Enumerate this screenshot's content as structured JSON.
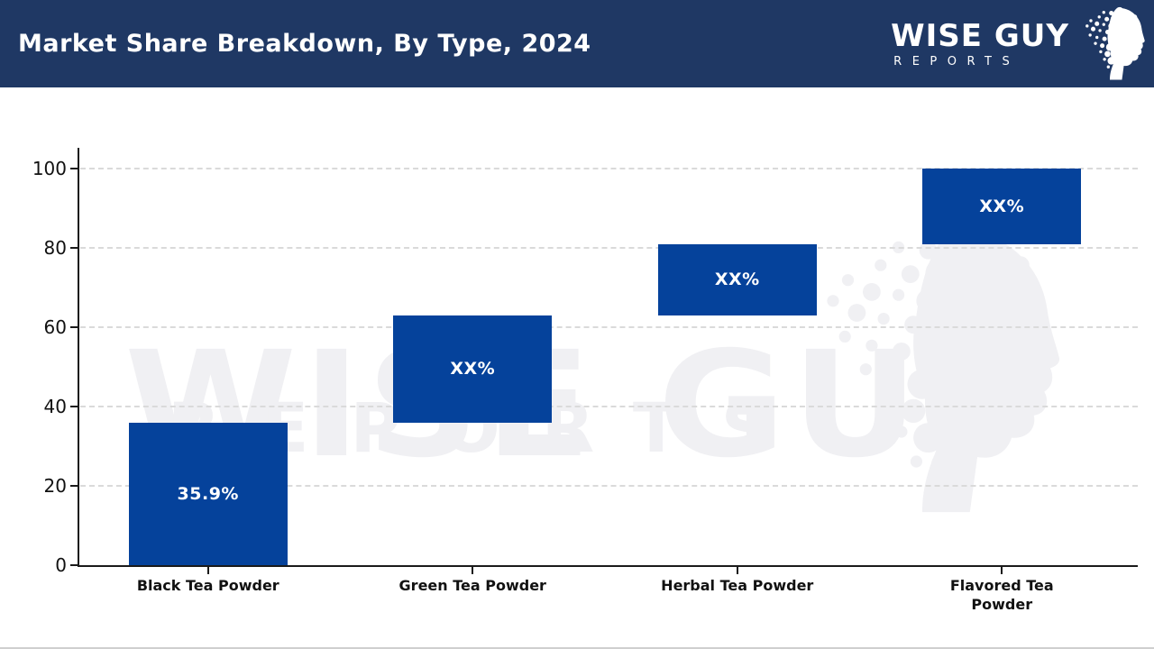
{
  "header": {
    "title": "Market Share Breakdown, By Type, 2024",
    "logo": {
      "line1": "WISE GUY",
      "line2": "REPORTS"
    }
  },
  "watermark": {
    "line1": "WISE GUY",
    "line2": "REPORTS"
  },
  "colors": {
    "header_bg": "#1f3864",
    "bar": "#05429b",
    "bar_label": "#ffffff",
    "grid": "#dadada",
    "axis": "#1a1a1a",
    "watermark": "#f0f0f3"
  },
  "chart_data": {
    "type": "bar",
    "variant": "floating-waterfall",
    "title": "Market Share Breakdown, By Type, 2024",
    "categories": [
      "Black Tea Powder",
      "Green Tea Powder",
      "Herbal Tea Powder",
      "Flavored Tea Powder"
    ],
    "tick_label_lines": [
      [
        "Black Tea Powder"
      ],
      [
        "Green Tea Powder"
      ],
      [
        "Herbal Tea Powder"
      ],
      [
        "Flavored Tea",
        "Powder"
      ]
    ],
    "segments": [
      {
        "category": "Black Tea Powder",
        "start": 0,
        "end": 35.9,
        "label": "35.9%"
      },
      {
        "category": "Green Tea Powder",
        "start": 35.9,
        "end": 63,
        "label": "XX%"
      },
      {
        "category": "Herbal Tea Powder",
        "start": 63,
        "end": 81,
        "label": "XX%"
      },
      {
        "category": "Flavored Tea Powder",
        "start": 81,
        "end": 100,
        "label": "XX%"
      }
    ],
    "xlabel": "",
    "ylabel": "",
    "ylim": [
      0,
      100
    ],
    "yticks": [
      0,
      20,
      40,
      60,
      80,
      100
    ],
    "grid": "horizontal-dashed",
    "legend": "none"
  }
}
